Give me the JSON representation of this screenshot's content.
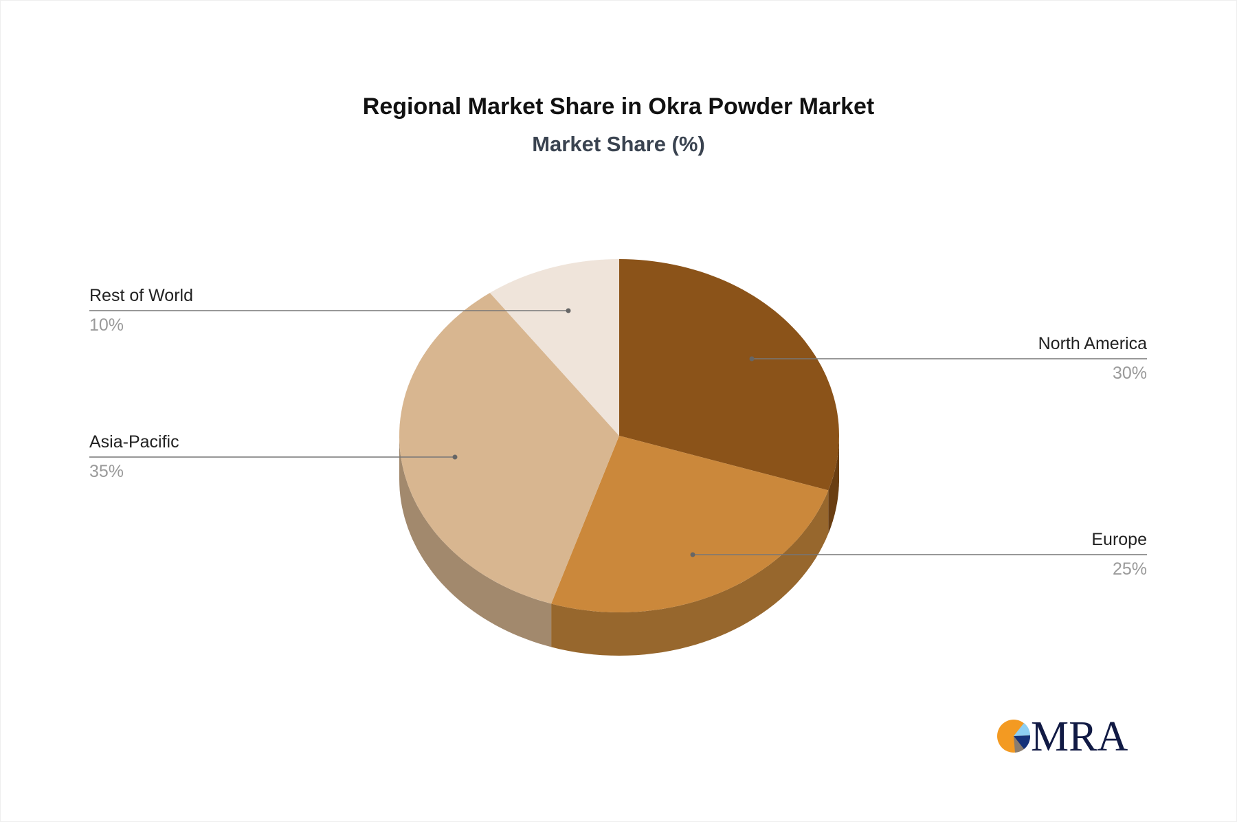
{
  "chart_data": {
    "type": "pie",
    "title": "Regional Market Share in Okra Powder Market",
    "subtitle": "Market Share (%)",
    "slices": [
      {
        "label": "North America",
        "value": 30,
        "value_label": "30%",
        "color": "#8B5319",
        "side_color": "#6A3E12"
      },
      {
        "label": "Europe",
        "value": 25,
        "value_label": "25%",
        "color": "#CB883B",
        "side_color": "#97672D"
      },
      {
        "label": "Asia-Pacific",
        "value": 35,
        "value_label": "35%",
        "color": "#D8B690",
        "side_color": "#A2896D"
      },
      {
        "label": "Rest of World",
        "value": 10,
        "value_label": "10%",
        "color": "#EFE4DA",
        "side_color": "#C9BCB0"
      }
    ],
    "style": "3d-pie",
    "legend": "leader-line labels"
  },
  "logo": {
    "text": "MRA"
  }
}
